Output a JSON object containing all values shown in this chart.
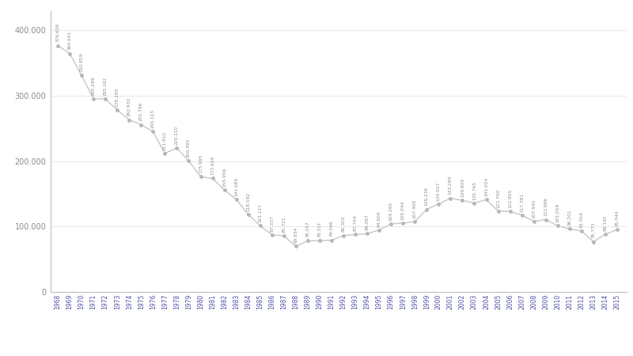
{
  "years": [
    1968,
    1969,
    1970,
    1971,
    1972,
    1973,
    1974,
    1975,
    1976,
    1977,
    1978,
    1979,
    1980,
    1981,
    1982,
    1983,
    1984,
    1985,
    1986,
    1987,
    1988,
    1989,
    1990,
    1991,
    1992,
    1993,
    1994,
    1995,
    1996,
    1997,
    1998,
    1999,
    2000,
    2001,
    2002,
    2003,
    2004,
    2005,
    2006,
    2007,
    2008,
    2009,
    2010,
    2011,
    2012,
    2013,
    2014,
    2015
  ],
  "values": [
    376638,
    364641,
    330859,
    295299,
    295162,
    278280,
    262932,
    255786,
    245115,
    211910,
    220110,
    200485,
    175995,
    173659,
    155956,
    141084,
    118592,
    101117,
    87337,
    85721,
    69634,
    78057,
    78511,
    79096,
    86302,
    87704,
    89097,
    94600,
    104265,
    105044,
    107468,
    126236,
    134507,
    143289,
    139805,
    135765,
    141004,
    123700,
    122955,
    117381,
    107940,
    110668,
    101059,
    96201,
    93354,
    76773,
    88145,
    95044
  ],
  "line_color": "#c8c8c8",
  "marker_color": "#b8b8b8",
  "text_color": "#909090",
  "axis_label_color": "#5555aa",
  "background_color": "#ffffff",
  "ylim": [
    0,
    430000
  ],
  "yticks": [
    0,
    100000,
    200000,
    300000,
    400000
  ],
  "ytick_labels": [
    "0",
    "100.000",
    "200.000",
    "300.000",
    "400.000"
  ],
  "spine_color": "#c0c0c0",
  "grid_color": "#e8e8e8"
}
